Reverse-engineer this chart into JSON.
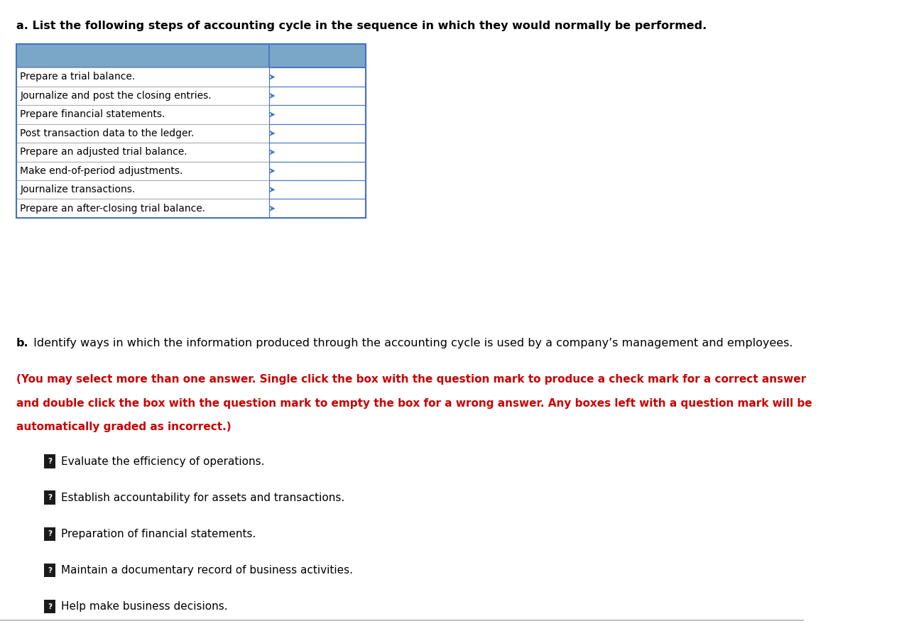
{
  "title_a": "a. List the following steps of accounting cycle in the sequence in which they would normally be performed.",
  "table_rows": [
    "Prepare a trial balance.",
    "Journalize and post the closing entries.",
    "Prepare financial statements.",
    "Post transaction data to the ledger.",
    "Prepare an adjusted trial balance.",
    "Make end-of-period adjustments.",
    "Journalize transactions.",
    "Prepare an after-closing trial balance."
  ],
  "table_header_color": "#7aa7c7",
  "table_border_color": "#4472c4",
  "subtitle_b_lines": [
    "(You may select more than one answer. Single click the box with the question mark to produce a check mark for a correct answer",
    "and double click the box with the question mark to empty the box for a wrong answer. Any boxes left with a question mark will be",
    "automatically graded as incorrect.)"
  ],
  "checkboxes": [
    "Evaluate the efficiency of operations.",
    "Establish accountability for assets and transactions.",
    "Preparation of financial statements.",
    "Maintain a documentary record of business activities.",
    "Help make business decisions."
  ],
  "bg_color": "#ffffff",
  "text_color": "#000000",
  "red_color": "#cc0000"
}
